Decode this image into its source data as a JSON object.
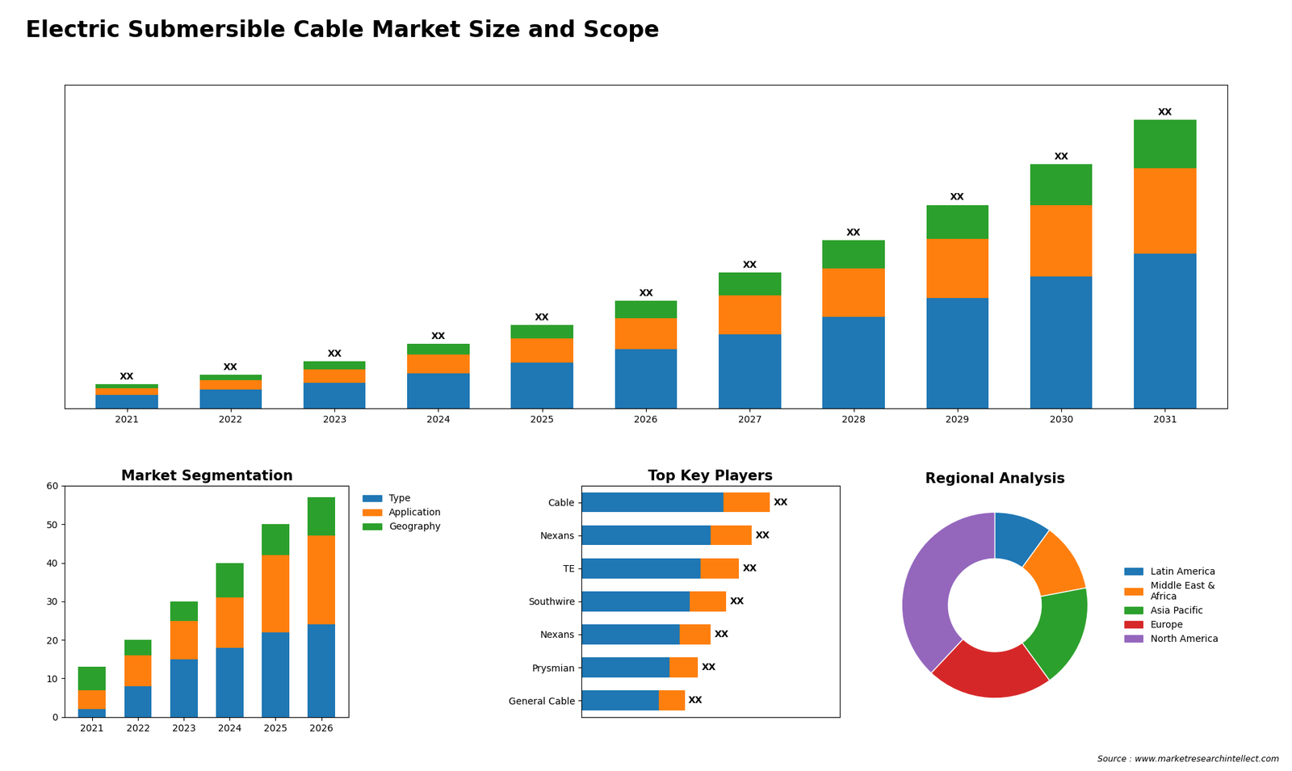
{
  "title": "Electric Submersible Cable Market Size and Scope",
  "annotations": [
    "Source : www.marketresearchintellect.com"
  ],
  "chart_data": [
    {
      "type": "bar",
      "stacked": true,
      "categories": [
        "2021",
        "2022",
        "2023",
        "2024",
        "2025",
        "2026",
        "2027",
        "2028",
        "2029",
        "2030",
        "2031"
      ],
      "series": [
        {
          "values": [
            1.0,
            1.4,
            1.9,
            2.6,
            3.4,
            4.4,
            5.5,
            6.8,
            8.2,
            9.8,
            11.5
          ]
        },
        {
          "values": [
            0.5,
            0.7,
            1.0,
            1.4,
            1.8,
            2.3,
            2.9,
            3.6,
            4.4,
            5.3,
            6.3
          ]
        },
        {
          "values": [
            0.3,
            0.4,
            0.6,
            0.8,
            1.0,
            1.3,
            1.7,
            2.1,
            2.5,
            3.0,
            3.6
          ]
        }
      ],
      "ylim": [
        0,
        24
      ],
      "tick_labels": "x",
      "data_labels": true,
      "value_labels": [
        "XX",
        "XX",
        "XX",
        "XX",
        "XX",
        "XX",
        "XX",
        "XX",
        "XX",
        "XX",
        "XX"
      ]
    },
    {
      "type": "bar",
      "stacked": true,
      "title": "Market Segmentation",
      "categories": [
        "2021",
        "2022",
        "2023",
        "2024",
        "2025",
        "2026"
      ],
      "series": [
        {
          "name": "Type",
          "values": [
            2,
            8,
            15,
            18,
            22,
            24
          ]
        },
        {
          "name": "Application",
          "values": [
            5,
            8,
            10,
            13,
            20,
            23
          ]
        },
        {
          "name": "Geography",
          "values": [
            6,
            4,
            5,
            9,
            8,
            10
          ]
        }
      ],
      "ylim": [
        0,
        60
      ],
      "yticks": [
        0,
        10,
        20,
        30,
        40,
        50,
        60
      ],
      "legend": "upper left"
    },
    {
      "type": "bar",
      "stacked": true,
      "orientation": "horizontal",
      "title": "Top Key Players",
      "categories": [
        "Cable",
        "Nexans",
        "TE",
        "Southwire",
        "Nexans",
        "Prysmian",
        "General Cable"
      ],
      "series": [
        {
          "values": [
            0.55,
            0.5,
            0.46,
            0.42,
            0.38,
            0.34,
            0.3
          ]
        },
        {
          "values": [
            0.18,
            0.16,
            0.15,
            0.14,
            0.12,
            0.11,
            0.1
          ]
        }
      ],
      "xlim": [
        0,
        1.0
      ],
      "tick_labels": "y",
      "data_labels": true,
      "value_labels": [
        "XX",
        "XX",
        "XX",
        "XX",
        "XX",
        "XX",
        "XX"
      ]
    },
    {
      "type": "pie",
      "title": "Regional Analysis",
      "categories": [
        "Latin America",
        "Middle East &\nAfrica",
        "Asia Pacific",
        "Europe",
        "North America"
      ],
      "values": [
        10,
        12,
        18,
        22,
        38
      ],
      "legend": "center left"
    }
  ]
}
